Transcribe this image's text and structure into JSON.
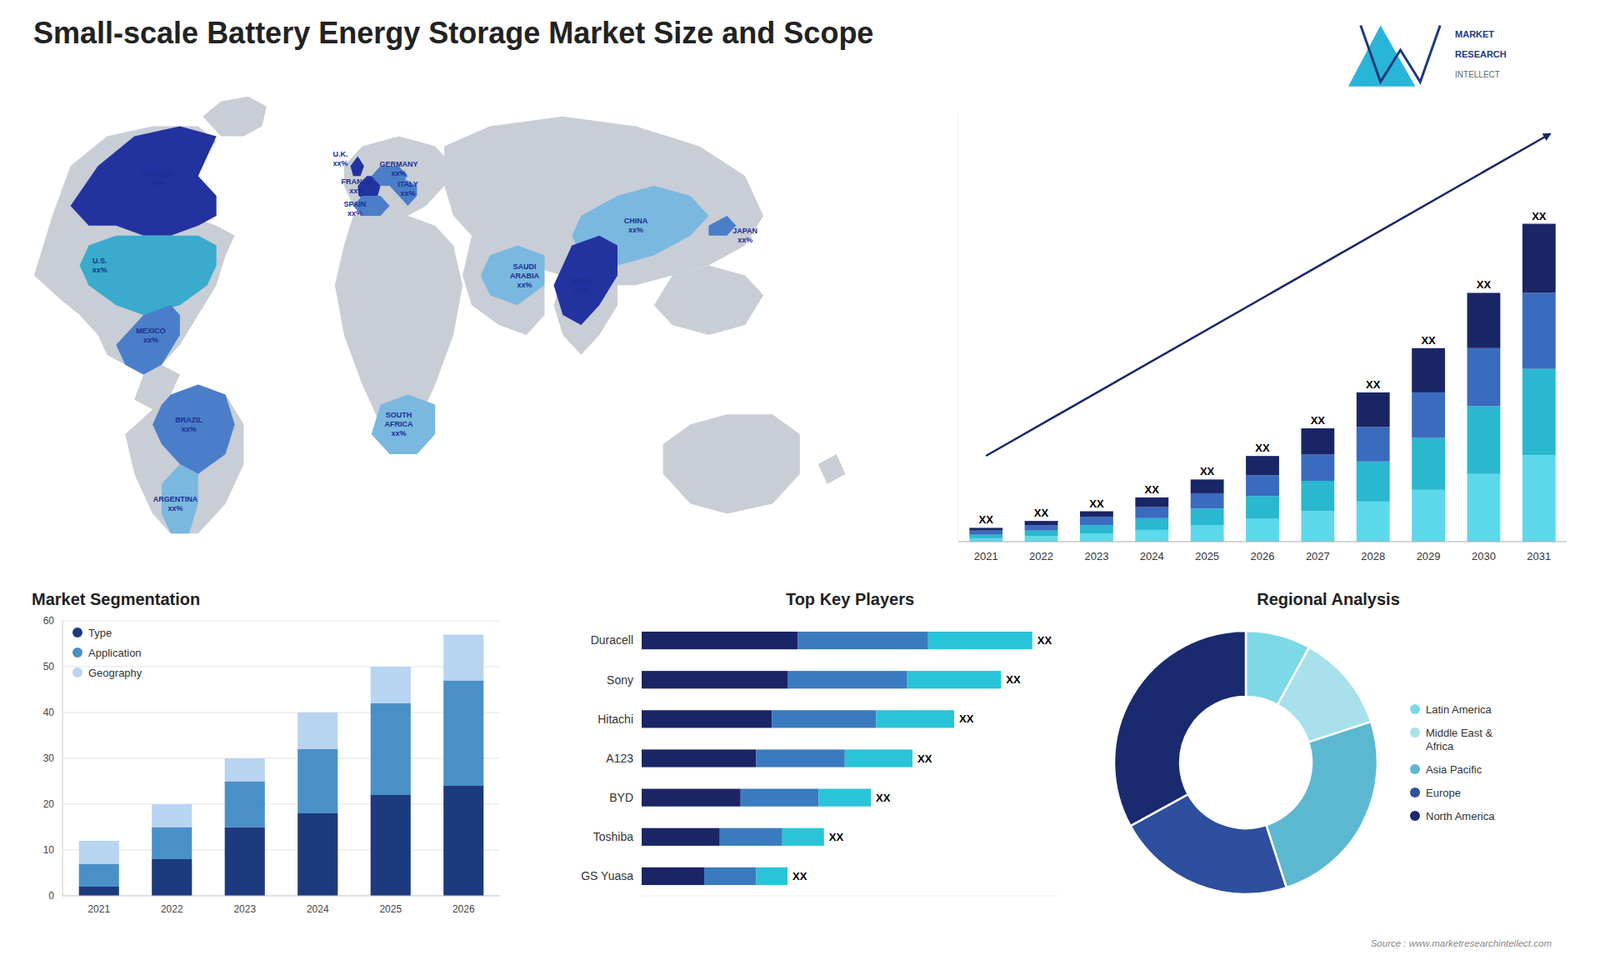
{
  "chart_data": [
    {
      "type": "bar",
      "title": "Small-scale Battery Energy Storage Market Size and Scope",
      "stacked": true,
      "categories": [
        "2021",
        "2022",
        "2023",
        "2024",
        "2025",
        "2026",
        "2027",
        "2028",
        "2029",
        "2030",
        "2031"
      ],
      "series": [
        {
          "color": "#5dd8ea",
          "values": [
            0.25,
            0.4,
            0.6,
            0.85,
            1.2,
            1.65,
            2.2,
            2.9,
            3.75,
            4.9,
            6.25
          ]
        },
        {
          "color": "#29b8d0",
          "values": [
            0.25,
            0.4,
            0.6,
            0.85,
            1.2,
            1.65,
            2.2,
            2.9,
            3.75,
            4.9,
            6.25
          ]
        },
        {
          "color": "#3a6bbf",
          "values": [
            0.3,
            0.4,
            0.6,
            0.8,
            1.1,
            1.5,
            1.9,
            2.5,
            3.3,
            4.2,
            5.5
          ]
        },
        {
          "color": "#1a2566",
          "values": [
            0.2,
            0.3,
            0.4,
            0.7,
            1.0,
            1.4,
            1.9,
            2.5,
            3.2,
            4.0,
            5.0
          ]
        }
      ],
      "ylim": [
        0,
        31.05
      ],
      "tick_labels": "x",
      "grid": false,
      "annotations": [
        "XX",
        "XX",
        "XX",
        "XX",
        "XX",
        "XX",
        "XX",
        "XX",
        "XX",
        "XX",
        "XX"
      ]
    },
    {
      "type": "map",
      "categories": [
        "CANADA\nxx%",
        "U.S.\nxx%",
        "MEXICO\nxx%",
        "BRAZIL\nxx%",
        "ARGENTINA\nxx%",
        "U.K.\nxx%",
        "FRANCE\nxx%",
        "SPAIN\nxx%",
        "GERMANY\nxx%",
        "ITALY\nxx%",
        "SAUDI\nARABIA\nxx%",
        "SOUTH\nAFRICA\nxx%",
        "CHINA\nxx%",
        "INDIA\nxx%",
        "JAPAN\nxx%"
      ],
      "colors": [
        "#2233a0",
        "#3aabcc",
        "#4a7ec8",
        "#4a7ec8",
        "#7ab8e0",
        "#2233a0",
        "#2233a0",
        "#4a7ec8",
        "#4a7ec8",
        "#4a7ec8",
        "#7ab8e0",
        "#7ab8e0",
        "#7ab8e0",
        "#2233a0",
        "#4a7ec8"
      ],
      "annotations": [
        "MARKET",
        "RESEARCH",
        "INTELLECT",
        "Source : www.marketresearchintellect.com"
      ]
    },
    {
      "type": "bar",
      "title": "Market Segmentation",
      "stacked": true,
      "categories": [
        "2021",
        "2022",
        "2023",
        "2024",
        "2025",
        "2026"
      ],
      "series": [
        {
          "name": "Type",
          "color": "#1e3a7e",
          "values": [
            2,
            8,
            15,
            18,
            22,
            24
          ]
        },
        {
          "name": "Application",
          "color": "#4a90c8",
          "values": [
            5,
            7,
            10,
            14,
            20,
            23
          ]
        },
        {
          "name": "Geography",
          "color": "#b8d4f0",
          "values": [
            5,
            5,
            5,
            8,
            8,
            10
          ]
        }
      ],
      "ylim": [
        0,
        60
      ],
      "yticks": [
        0,
        10,
        20,
        30,
        40,
        50,
        60
      ],
      "grid": true,
      "legend": "upper left"
    },
    {
      "type": "bar",
      "title": "Top Key Players",
      "orientation": "horizontal",
      "stacked": true,
      "categories": [
        "Duracell",
        "Sony",
        "Hitachi",
        "A123",
        "BYD",
        "Toshiba",
        "GS Yuasa"
      ],
      "series": [
        {
          "color": "#1a2566",
          "values": [
            3.0,
            2.8,
            2.5,
            2.2,
            1.9,
            1.5,
            1.2
          ]
        },
        {
          "color": "#3a7bbf",
          "values": [
            2.5,
            2.3,
            2.0,
            1.7,
            1.5,
            1.2,
            1.0
          ]
        },
        {
          "color": "#29c4d8",
          "values": [
            2.0,
            1.8,
            1.5,
            1.3,
            1.0,
            0.8,
            0.6
          ]
        }
      ],
      "xlim": [
        0,
        8
      ],
      "tick_labels": "y",
      "annotations": [
        "XX",
        "XX",
        "XX",
        "XX",
        "XX",
        "XX",
        "XX"
      ]
    },
    {
      "type": "donut",
      "title": "Regional Analysis",
      "categories": [
        "Latin America",
        "Middle East &\nAfrica",
        "Asia Pacific",
        "Europe",
        "North America"
      ],
      "values": [
        8,
        12,
        25,
        22,
        33
      ],
      "colors": [
        "#7dd8e8",
        "#a8e0ec",
        "#5cb8d0",
        "#2d4f9e",
        "#1a2a6e"
      ],
      "legend": "right"
    }
  ]
}
